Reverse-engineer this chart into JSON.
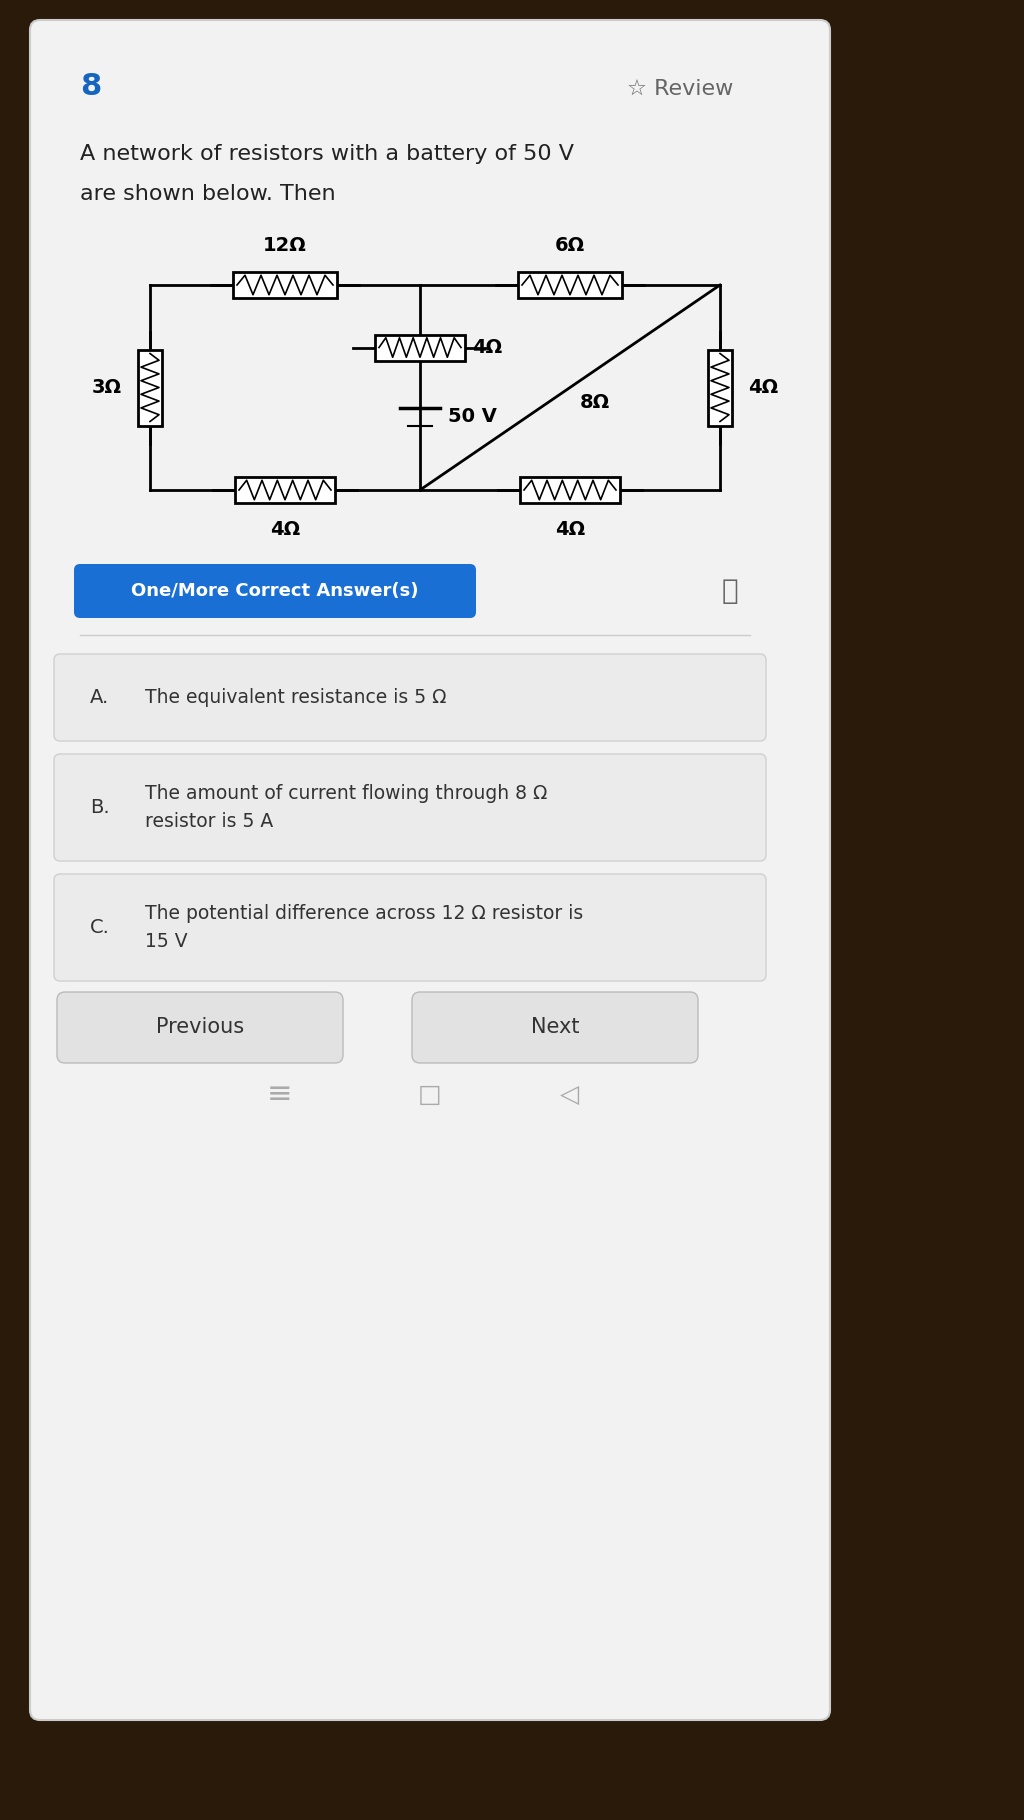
{
  "bg_outer": "#2a1a0a",
  "bg_phone": "#1a1a1a",
  "card_bg": "#f2f2f2",
  "question_number": "8",
  "question_number_color": "#1565C0",
  "review_text": "☆ Review",
  "title_line1": "A network of resistors with a battery of 50 V",
  "title_line2": "are shown below. Then",
  "one_more_label": "One/More Correct Answer(s)",
  "one_more_bg": "#1a6fd4",
  "one_more_color": "#ffffff",
  "option_A": "The equivalent resistance is 5 Ω",
  "option_B_line1": "The amount of current flowing through 8 Ω",
  "option_B_line2": "resistor is 5 A",
  "option_C_line1": "The potential difference across 12 Ω resistor is",
  "option_C_line2": "15 V",
  "btn_previous": "Previous",
  "btn_next": "Next",
  "R12": "12Ω",
  "R6": "6Ω",
  "R4_mid": "4Ω",
  "R3": "3Ω",
  "R4_bot_left": "4Ω",
  "R8": "8Ω",
  "R4_bot_right": "4Ω",
  "R4_right": "4Ω",
  "V50": "50 V"
}
